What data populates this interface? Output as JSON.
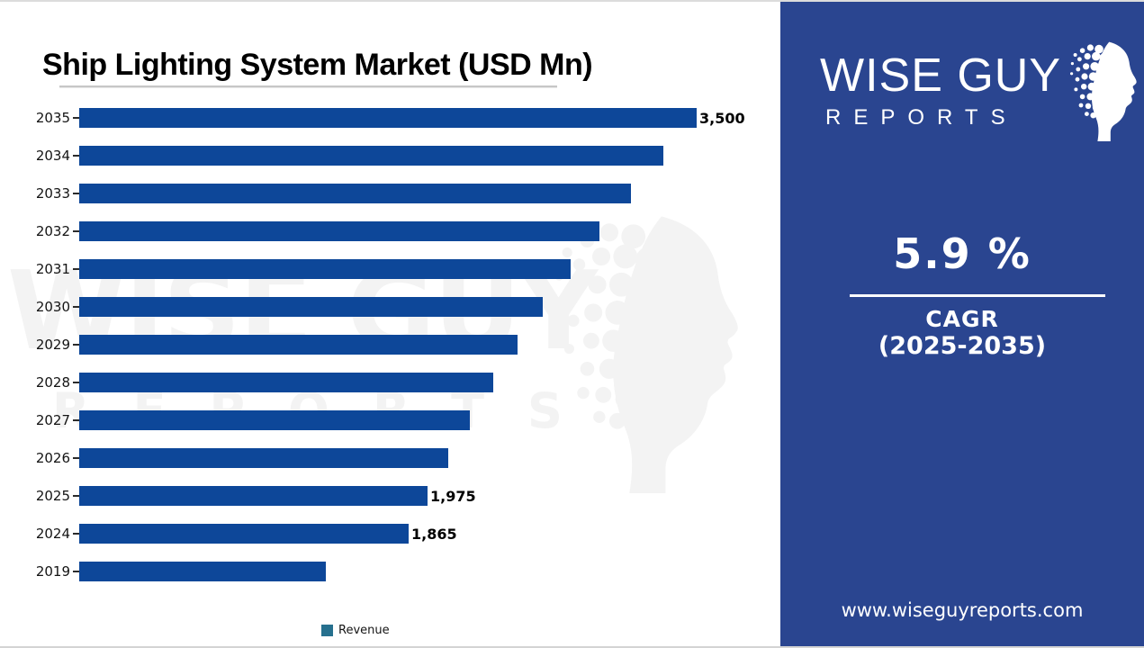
{
  "chart": {
    "title": "Ship Lighting System Market (USD Mn)"
  },
  "chart_data": {
    "type": "bar",
    "orientation": "horizontal",
    "title": "Ship Lighting System Market (USD Mn)",
    "categories": [
      "2035",
      "2034",
      "2033",
      "2032",
      "2031",
      "2030",
      "2029",
      "2028",
      "2027",
      "2026",
      "2025",
      "2024",
      "2019"
    ],
    "values": [
      3500,
      3310,
      3125,
      2950,
      2785,
      2630,
      2485,
      2345,
      2215,
      2090,
      1975,
      1865,
      1400
    ],
    "data_labels": {
      "2035": "3,500",
      "2025": "1,975",
      "2024": "1,865"
    },
    "series_name": "Revenue",
    "bar_color": "#0d4799",
    "xlim": [
      0,
      3500
    ],
    "grid": false,
    "x_axis_labels_visible": false,
    "legend_position": "bottom"
  },
  "legend": {
    "label": "Revenue",
    "swatch_color": "#26708e"
  },
  "watermark": {
    "line1": "WISE GUY",
    "line2": "REPORTS"
  },
  "side_panel": {
    "background_color": "#2a4590",
    "logo_line1": "WISE GUY",
    "logo_line2": "REPORTS",
    "cagr_value": "5.9 %",
    "cagr_label": "CAGR",
    "cagr_period": "(2025-2035)",
    "website": "www.wiseguyreports.com"
  }
}
